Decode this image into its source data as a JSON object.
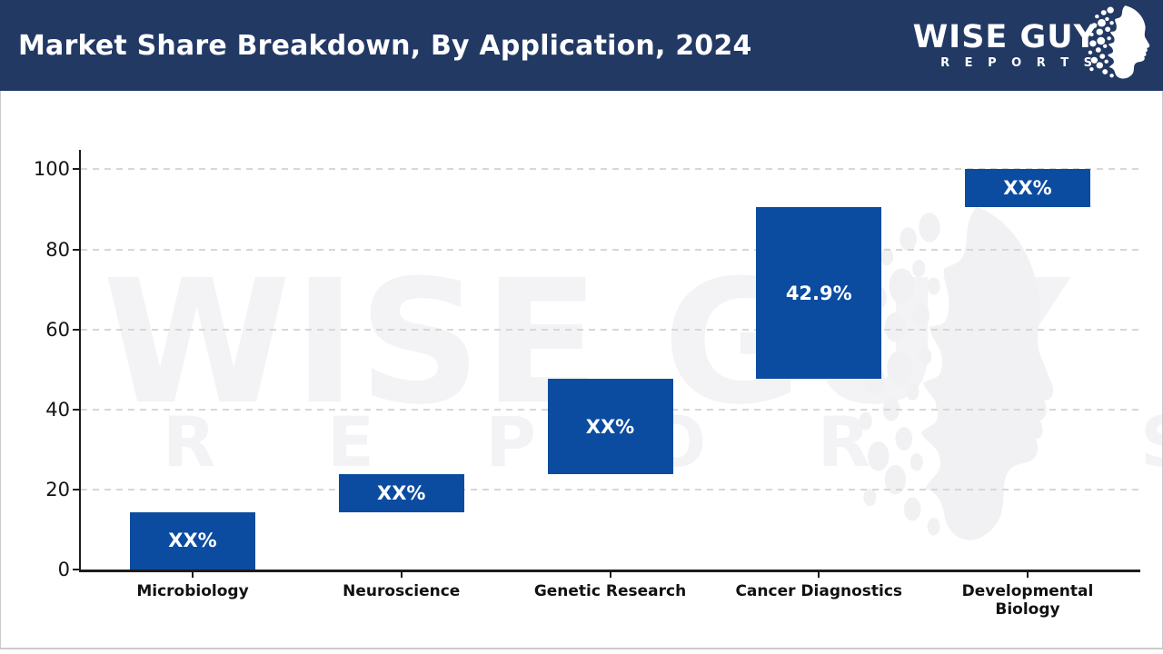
{
  "header": {
    "bg_color": "#223964",
    "logo": {
      "line1": "WISE GUY",
      "line2": "R E P O R T S"
    }
  },
  "watermark": {
    "line1": "WISE GUY",
    "line2": "R E P O R T S",
    "color": "#f3f3f5"
  },
  "chart_data": {
    "type": "bar",
    "subtype": "waterfall",
    "title": "Market Share Breakdown, By Application, 2024",
    "categories": [
      "Microbiology",
      "Neuroscience",
      "Genetic Research",
      "Cancer Diagnostics",
      "Developmental Biology"
    ],
    "series": [
      {
        "name": "Market share (%)",
        "segments": [
          [
            0,
            14.3
          ],
          [
            14.3,
            23.8
          ],
          [
            23.8,
            47.6
          ],
          [
            47.6,
            90.5
          ],
          [
            90.5,
            100
          ]
        ],
        "values": [
          14.3,
          9.5,
          23.8,
          42.9,
          9.5
        ]
      }
    ],
    "bar_labels": [
      "XX%",
      "XX%",
      "XX%",
      "42.9%",
      "XX%"
    ],
    "yticks": [
      0,
      20,
      40,
      60,
      80,
      100
    ],
    "ylim": [
      0,
      105
    ],
    "xlabel": "",
    "ylabel": "",
    "grid": "horizontal-dashed",
    "legend": "none",
    "bar_color": "#0b4ca0",
    "bar_label_color": "#ffffff",
    "axis_color": "#1c1c1c"
  }
}
